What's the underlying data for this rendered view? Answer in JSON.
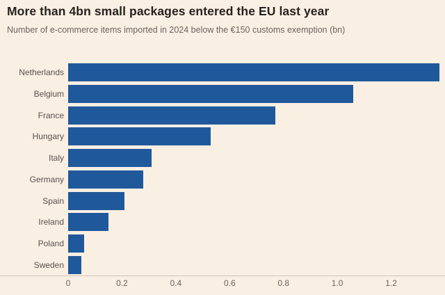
{
  "header": {
    "title": "More than 4bn small packages entered the EU last year",
    "subtitle": "Number of e-commerce items imported in 2024 below the €150 customs exemption (bn)"
  },
  "colors": {
    "background": "#FAEFE3",
    "bar": "#20599B",
    "title_text": "#262220",
    "subtitle_text": "#6A635E",
    "label_text": "#57514C",
    "axis_line": "#CEC4B8"
  },
  "chart_data": {
    "type": "bar",
    "orientation": "horizontal",
    "title": "More than 4bn small packages entered the EU last year",
    "subtitle": "Number of e-commerce items imported in 2024 below the €150 customs exemption (bn)",
    "unit": "bn",
    "categories": [
      "Netherlands",
      "Belgium",
      "France",
      "Hungary",
      "Italy",
      "Germany",
      "Spain",
      "Ireland",
      "Poland",
      "Sweden"
    ],
    "values": [
      1.38,
      1.06,
      0.77,
      0.53,
      0.31,
      0.28,
      0.21,
      0.15,
      0.06,
      0.05
    ],
    "xlabel": "",
    "ylabel": "",
    "xlim": [
      0,
      1.4
    ],
    "xticks": [
      0,
      0.2,
      0.4,
      0.6,
      0.8,
      1.0,
      1.2
    ],
    "xtick_labels": [
      "0",
      "0.2",
      "0.4",
      "0.6",
      "0.8",
      "1.0",
      "1.2"
    ],
    "grid": "none",
    "legend": "none",
    "bar_color": "#20599B"
  }
}
